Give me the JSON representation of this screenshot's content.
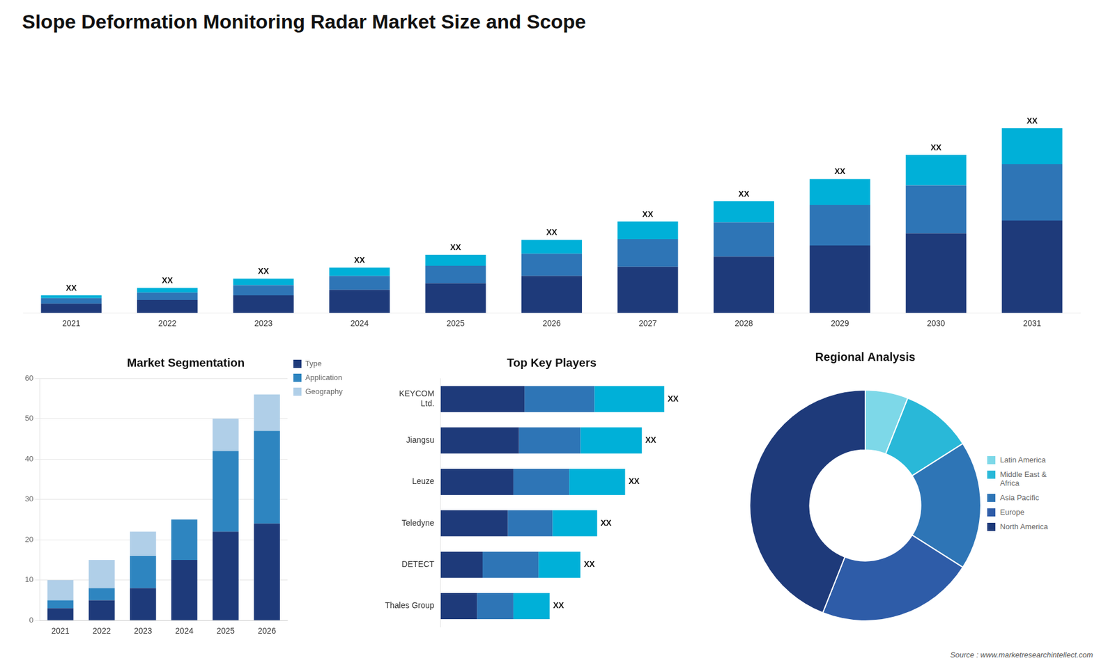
{
  "title": "Slope Deformation Monitoring Radar Market Size and Scope",
  "annotations": [
    "Source : www.marketresearchintellect.com"
  ],
  "chart_data": [
    {
      "type": "bar",
      "stacked": true,
      "categories": [
        "2021",
        "2022",
        "2023",
        "2024",
        "2025",
        "2026",
        "2027",
        "2028",
        "2029",
        "2030",
        "2031"
      ],
      "series": [
        {
          "color": "#1e3a7a",
          "values": [
            1.0,
            1.4,
            1.9,
            2.5,
            3.2,
            4.0,
            5.0,
            6.1,
            7.3,
            8.6,
            10.0
          ]
        },
        {
          "color": "#2e75b6",
          "values": [
            0.6,
            0.8,
            1.1,
            1.5,
            1.9,
            2.4,
            3.0,
            3.7,
            4.4,
            5.2,
            6.1
          ]
        },
        {
          "color": "#00b0d8",
          "values": [
            0.3,
            0.5,
            0.7,
            0.9,
            1.2,
            1.5,
            1.9,
            2.3,
            2.8,
            3.3,
            3.9
          ]
        }
      ],
      "ylim": [
        0,
        27.6
      ],
      "tick_labels": "x",
      "grid": false,
      "annotations": [
        "XX",
        "XX",
        "XX",
        "XX",
        "XX",
        "XX",
        "XX",
        "XX",
        "XX",
        "XX",
        "XX"
      ]
    },
    {
      "type": "bar",
      "stacked": true,
      "title": "Market Segmentation",
      "categories": [
        "2021",
        "2022",
        "2023",
        "2024",
        "2025",
        "2026"
      ],
      "series": [
        {
          "name": "Type",
          "color": "#1e3a7a",
          "values": [
            3,
            5,
            8,
            15,
            22,
            24
          ]
        },
        {
          "name": "Application",
          "color": "#2e85c0",
          "values": [
            2,
            3,
            8,
            10,
            20,
            23
          ]
        },
        {
          "name": "Geography",
          "color": "#b0cfe8",
          "values": [
            5,
            7,
            6,
            0,
            8,
            9
          ]
        }
      ],
      "ylim": [
        0,
        60
      ],
      "yticks": [
        0,
        10,
        20,
        30,
        40,
        50,
        60
      ],
      "grid": true,
      "legend": "right"
    },
    {
      "type": "bar",
      "stacked": true,
      "orientation": "horizontal",
      "title": "Top Key Players",
      "categories": [
        "KEYCOM\nLtd.",
        "Jiangsu",
        "Leuze",
        "Teledyne",
        "DETECT",
        "Thales Group"
      ],
      "series": [
        {
          "color": "#1e3a7a",
          "values": [
            0.3,
            0.28,
            0.26,
            0.24,
            0.15,
            0.13
          ]
        },
        {
          "color": "#2e75b6",
          "values": [
            0.25,
            0.22,
            0.2,
            0.16,
            0.2,
            0.13
          ]
        },
        {
          "color": "#00b0d8",
          "values": [
            0.25,
            0.22,
            0.2,
            0.16,
            0.15,
            0.13
          ]
        }
      ],
      "xlim": [
        0,
        1.0
      ],
      "tick_labels": "y",
      "grid": false,
      "annotations": [
        "XX",
        "XX",
        "XX",
        "XX",
        "XX",
        "XX"
      ]
    },
    {
      "type": "doughnut",
      "title": "Regional Analysis",
      "categories": [
        "Latin America",
        "Middle East &\nAfrica",
        "Asia Pacific",
        "Europe",
        "North America"
      ],
      "values": [
        6,
        10,
        18,
        22,
        44
      ],
      "colors": [
        "#7dd8e8",
        "#29b8d8",
        "#2e75b6",
        "#2e5ca8",
        "#1e3a7a"
      ],
      "legend": "right"
    }
  ]
}
